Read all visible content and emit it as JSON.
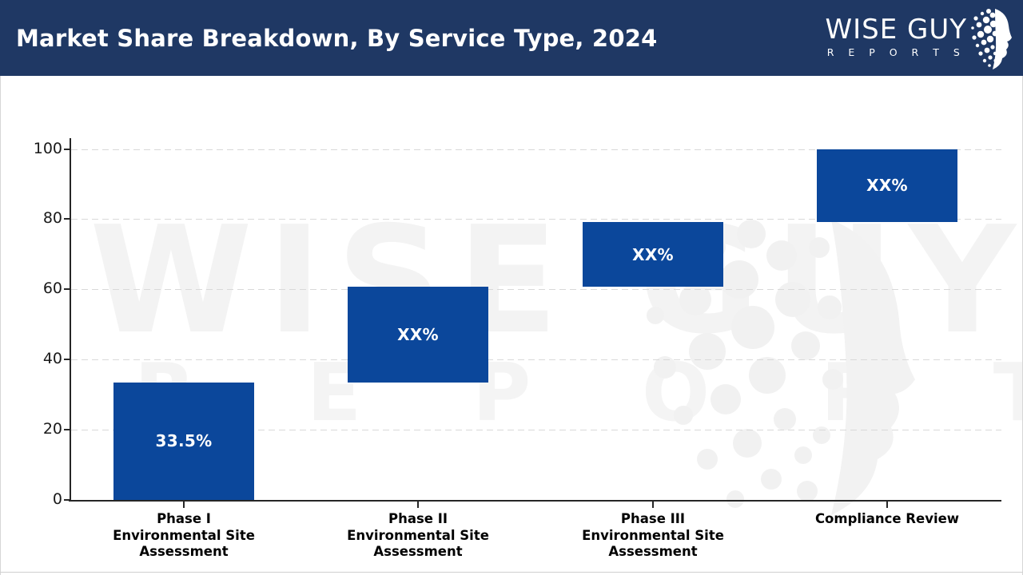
{
  "header": {
    "title": "Market Share Breakdown, By Service Type, 2024",
    "logo": {
      "name": "WISE GUY",
      "subtitle": "R E P O R T S"
    }
  },
  "watermark": {
    "line1": "WISE GUY",
    "line2": "R E P O R T S"
  },
  "chart_data": {
    "type": "bar",
    "subtype": "waterfall",
    "title": "Market Share Breakdown, By Service Type, 2024",
    "categories": [
      "Phase I\nEnvironmental Site\nAssessment",
      "Phase II\nEnvironmental Site\nAssessment",
      "Phase III\nEnvironmental Site\nAssessment",
      "Compliance Review"
    ],
    "segments": [
      {
        "start": 0,
        "end": 33.5,
        "value": 33.5,
        "label": "33.5%"
      },
      {
        "start": 33.5,
        "end": 60.7,
        "value": 27.2,
        "label": "XX%"
      },
      {
        "start": 60.7,
        "end": 79.1,
        "value": 18.4,
        "label": "XX%"
      },
      {
        "start": 79.1,
        "end": 100,
        "value": 20.9,
        "label": "XX%"
      }
    ],
    "yticks": [
      0,
      20,
      40,
      60,
      80,
      100
    ],
    "ylim": [
      0,
      103
    ],
    "xlabel": "",
    "ylabel": "",
    "legend": "none",
    "grid": "horizontal-dashed",
    "colors": {
      "bar": "#0b479b",
      "bar_label": "#ffffff",
      "gridline": "#d9d9d9",
      "axis": "#262626",
      "tick_label": "#1a1a1a",
      "header_bg": "#1f3864",
      "header_text": "#ffffff",
      "watermark": "#f3f3f3"
    }
  }
}
